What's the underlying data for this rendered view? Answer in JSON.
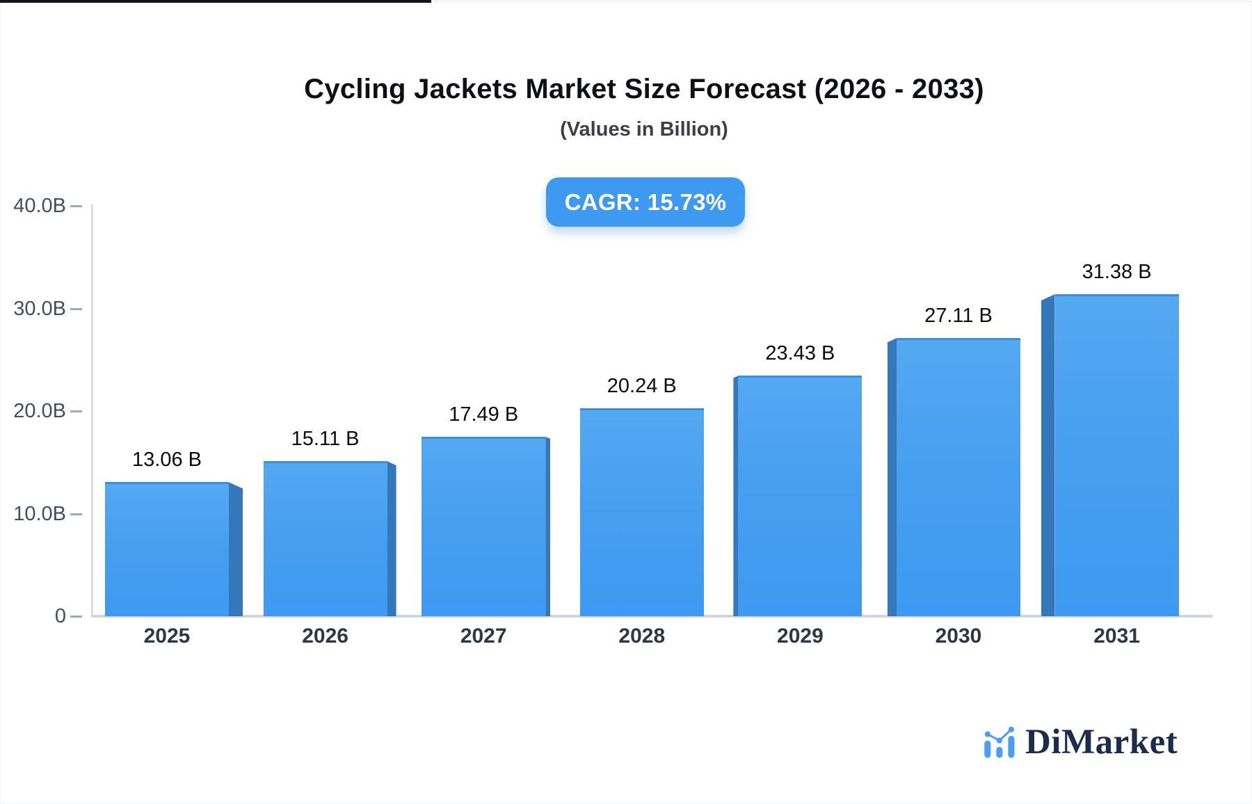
{
  "title": "Cycling Jackets Market Size Forecast (2026 - 2033)",
  "subtitle": "(Values in Billion)",
  "badge": {
    "label": "CAGR: 15.73%",
    "bg_color": "#3d9af0"
  },
  "chart_data": {
    "type": "bar",
    "title": "Cycling Jackets Market Size Forecast (2026 - 2033)",
    "subtitle": "(Values in Billion)",
    "unit": "Billion",
    "categories": [
      "2025",
      "2026",
      "2027",
      "2028",
      "2029",
      "2030",
      "2031"
    ],
    "values": [
      13.06,
      15.11,
      17.49,
      20.24,
      23.43,
      27.11,
      31.38
    ],
    "value_labels": [
      "13.06 B",
      "15.11 B",
      "17.49 B",
      "20.24 B",
      "23.43 B",
      "27.11 B",
      "31.38 B"
    ],
    "y_ticks": [
      {
        "value": 0,
        "label": "0"
      },
      {
        "value": 10,
        "label": "10.0B"
      },
      {
        "value": 20,
        "label": "20.0B"
      },
      {
        "value": 30,
        "label": "30.0B"
      },
      {
        "value": 40,
        "label": "40.0B"
      }
    ],
    "ylim": [
      0,
      40
    ],
    "grid": false,
    "legend": "none",
    "style": "3d-perspective-bars",
    "colors": {
      "bar_top": "#55a8f1",
      "bar_bottom": "#3e99f0",
      "bar_edge": "#3a8edd",
      "bar_side": "#3478bb",
      "axis_line": "#d2d6dc",
      "tick_text": "#454d5c",
      "category_text": "#2f3646",
      "value_text": "#0b0b0c"
    }
  },
  "branding": {
    "logo_text": "DiMarket",
    "logo_icon": "bar-chart-trend-icon",
    "logo_text_color": "#1c2c4c",
    "logo_accent_color": "#4a9df0"
  }
}
